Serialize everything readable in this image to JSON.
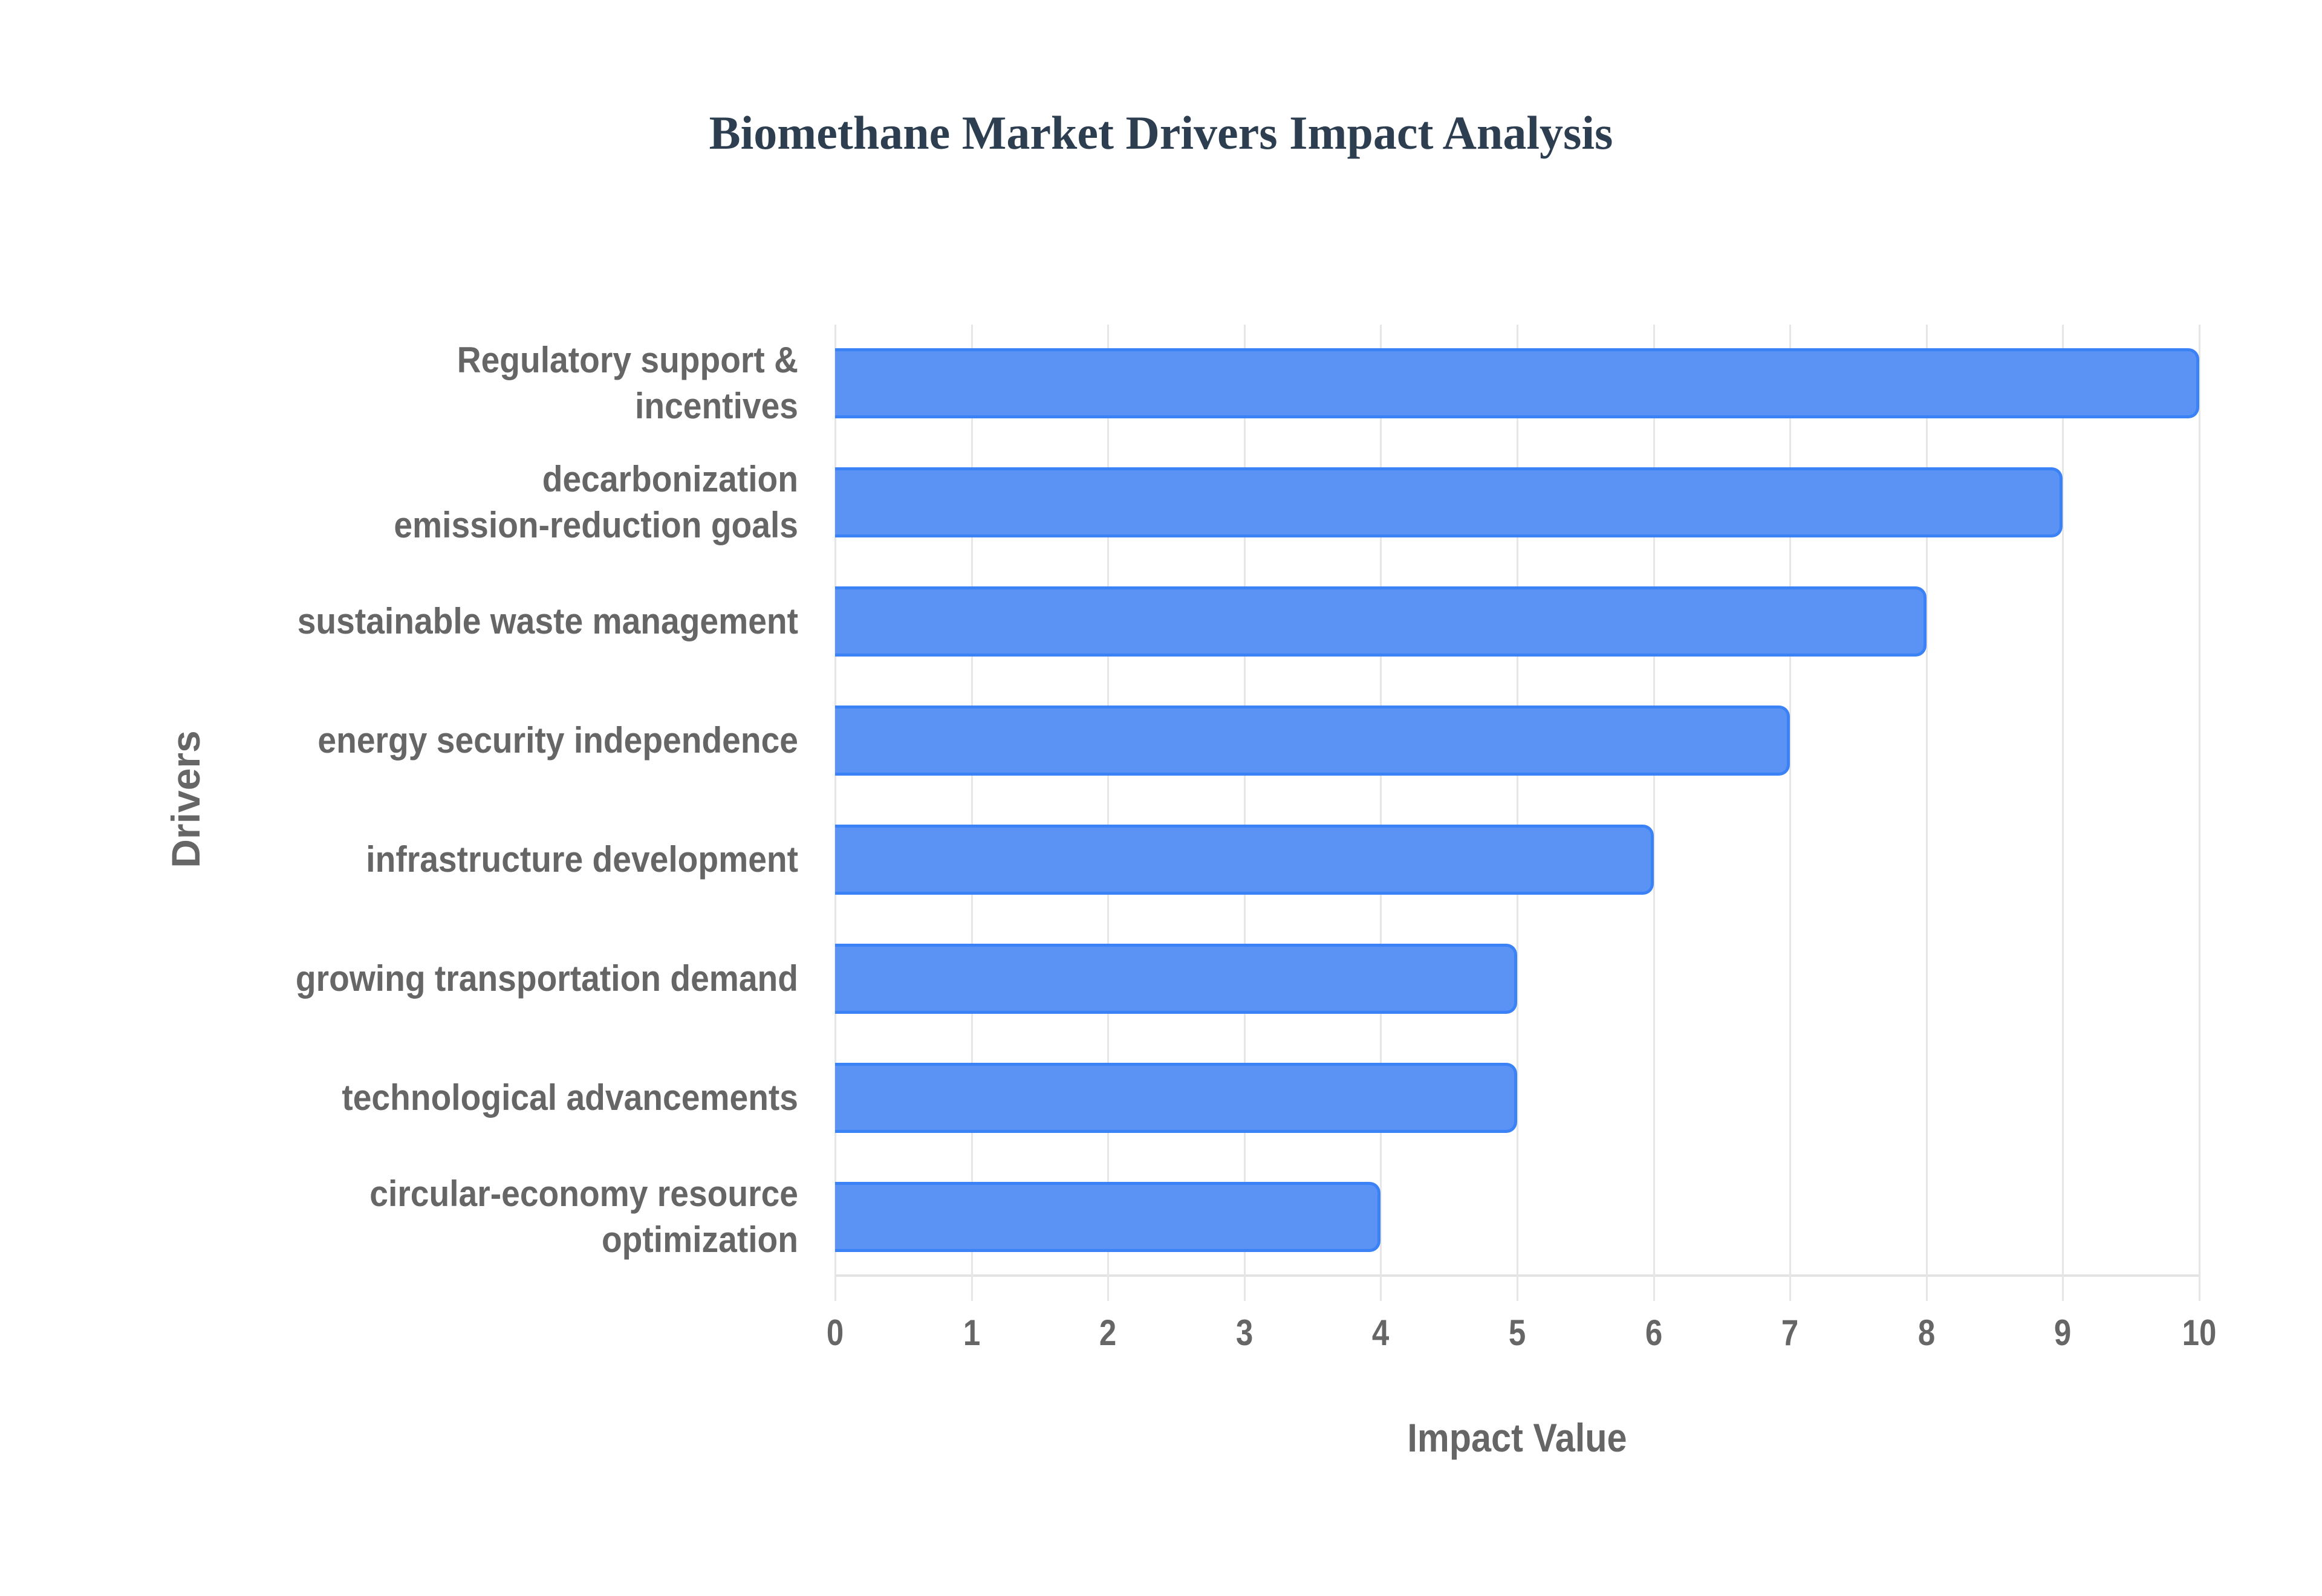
{
  "title": "Biomethane Market Drivers Impact Analysis",
  "axes": {
    "xlabel": "Impact Value",
    "ylabel": "Drivers",
    "ticks": [
      "0",
      "1",
      "2",
      "3",
      "4",
      "5",
      "6",
      "7",
      "8",
      "9",
      "10"
    ]
  },
  "colors": {
    "bar_fill": "#5a93f4",
    "bar_border": "#3b82f6",
    "grid": "#e6e6e6",
    "title": "#2c3e50",
    "label": "#666666"
  },
  "chart_data": {
    "type": "bar",
    "orientation": "horizontal",
    "title": "Biomethane Market Drivers Impact Analysis",
    "xlabel": "Impact Value",
    "ylabel": "Drivers",
    "xlim": [
      0,
      10
    ],
    "grid": true,
    "legend": null,
    "categories": [
      "Regulatory support & incentives",
      "decarbonization emission-reduction goals",
      "sustainable waste management",
      "energy security independence",
      "infrastructure development",
      "growing transportation demand",
      "technological advancements",
      "circular-economy resource optimization"
    ],
    "display_labels": [
      "Regulatory support &\nincentives",
      "decarbonization\nemission-reduction goals",
      "sustainable waste management",
      "energy security independence",
      "infrastructure development",
      "growing transportation demand",
      "technological advancements",
      "circular-economy resource\noptimization"
    ],
    "values": [
      10,
      9,
      8,
      7,
      6,
      5,
      5,
      4
    ]
  }
}
